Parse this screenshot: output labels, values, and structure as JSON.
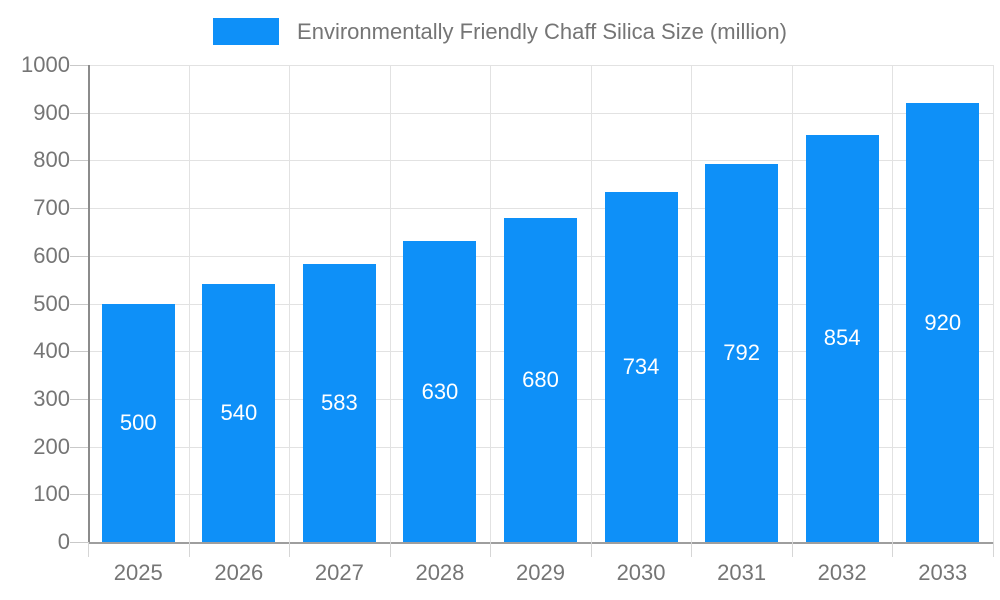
{
  "chart_data": {
    "type": "bar",
    "title": "Environmentally Friendly Chaff Silica Size (million)",
    "categories": [
      "2025",
      "2026",
      "2027",
      "2028",
      "2029",
      "2030",
      "2031",
      "2032",
      "2033"
    ],
    "values": [
      500,
      540,
      583,
      630,
      680,
      734,
      792,
      854,
      920
    ],
    "series": [
      {
        "name": "Environmentally Friendly Chaff Silica Size (million)",
        "values": [
          500,
          540,
          583,
          630,
          680,
          734,
          792,
          854,
          920
        ]
      }
    ],
    "xlabel": "",
    "ylabel": "",
    "ylim": [
      0,
      1000
    ],
    "ytick_step": 100,
    "yticks": [
      0,
      100,
      200,
      300,
      400,
      500,
      600,
      700,
      800,
      900,
      1000
    ],
    "grid": true,
    "legend_position": "top",
    "bar_label_position": "inside-middle",
    "colors": {
      "bar": "#0e90f8",
      "bar_label": "#ffffff",
      "axis_text": "#757575",
      "legend_text": "#757575",
      "gridline": "#e2e2e2",
      "axis_line": "#8b8b8b"
    }
  }
}
